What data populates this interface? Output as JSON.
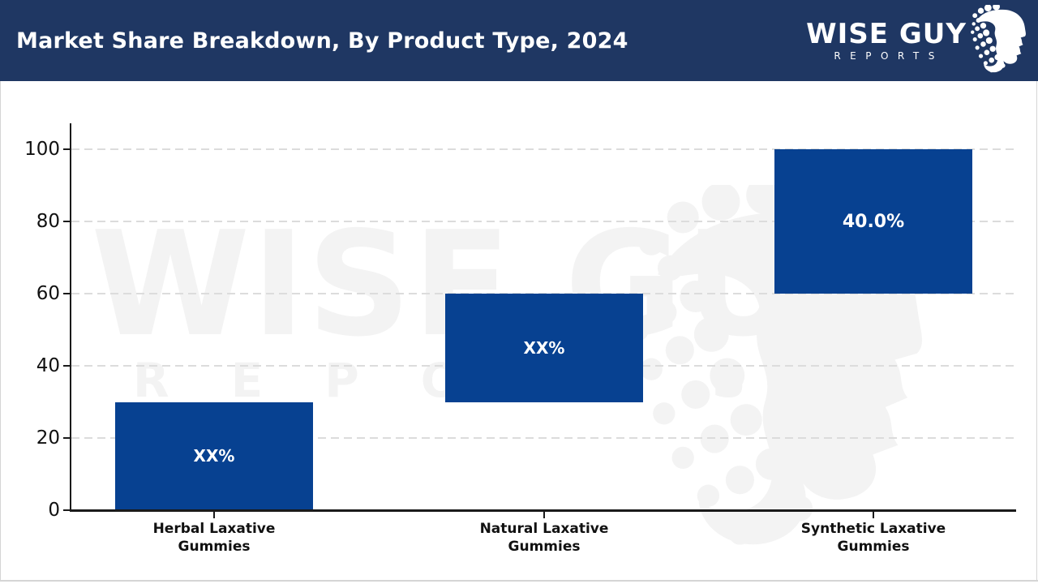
{
  "header": {
    "title": "Market Share Breakdown, By Product Type, 2024",
    "bg_color": "#1f3763",
    "text_color": "#ffffff",
    "logo": {
      "wordmark": "WISE GUY",
      "subtext": "REPORTS"
    }
  },
  "watermark": {
    "line1": "WISE GUY",
    "line2": "REPORTS"
  },
  "chart_data": {
    "type": "bar",
    "subtype": "floating-segment-bar",
    "title": "Market Share Breakdown, By Product Type, 2024",
    "categories": [
      "Herbal Laxative Gummies",
      "Natural Laxative Gummies",
      "Synthetic Laxative Gummies"
    ],
    "categories_lines": [
      [
        "Herbal Laxative",
        "Gummies"
      ],
      [
        "Natural Laxative",
        "Gummies"
      ],
      [
        "Synthetic Laxative",
        "Gummies"
      ]
    ],
    "bars": [
      {
        "category": "Herbal Laxative Gummies",
        "start": 0,
        "end": 30,
        "label": "XX%"
      },
      {
        "category": "Natural Laxative Gummies",
        "start": 30,
        "end": 60,
        "label": "XX%"
      },
      {
        "category": "Synthetic Laxative Gummies",
        "start": 60,
        "end": 100,
        "label": "40.0%"
      }
    ],
    "y_ticks": [
      0,
      20,
      40,
      60,
      80,
      100
    ],
    "ylim": [
      0,
      107
    ],
    "xlabel": "",
    "ylabel": "",
    "legend": null,
    "grid": {
      "horizontal": true,
      "style": "dashed",
      "color": "#dcdcdc"
    },
    "bar_color": "#074191",
    "bar_label_color": "#ffffff",
    "axis_color": "#1a1a1a"
  }
}
